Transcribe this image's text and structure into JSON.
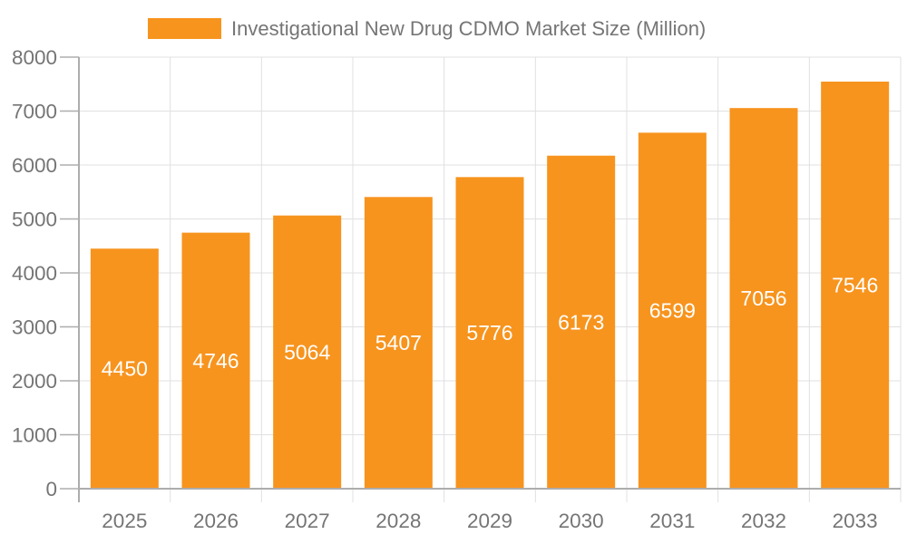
{
  "chart_data": {
    "type": "bar",
    "title": "Investigational New Drug CDMO Market Size (Million)",
    "legend": [
      "Investigational New Drug CDMO Market Size (Million)"
    ],
    "legend_position": "top-center",
    "categories": [
      "2025",
      "2026",
      "2027",
      "2028",
      "2029",
      "2030",
      "2031",
      "2032",
      "2033"
    ],
    "series": [
      {
        "name": "Investigational New Drug CDMO Market Size (Million)",
        "values": [
          4450,
          4746,
          5064,
          5407,
          5776,
          6173,
          6599,
          7056,
          7546
        ]
      }
    ],
    "xlabel": "",
    "ylabel": "",
    "ylim": [
      0,
      8000
    ],
    "ytick_labels": [
      "0",
      "1000",
      "2000",
      "3000",
      "4000",
      "5000",
      "6000",
      "7000",
      "8000"
    ],
    "grid": true,
    "value_label_position": "inside-center",
    "colors": {
      "bar": "#F7941E",
      "bar_value_label": "#FFFFFF",
      "axis_label": "#757575",
      "legend_label": "#757575",
      "grid_line": "#E0E0E0",
      "axis_line": "#ADADAD"
    }
  }
}
